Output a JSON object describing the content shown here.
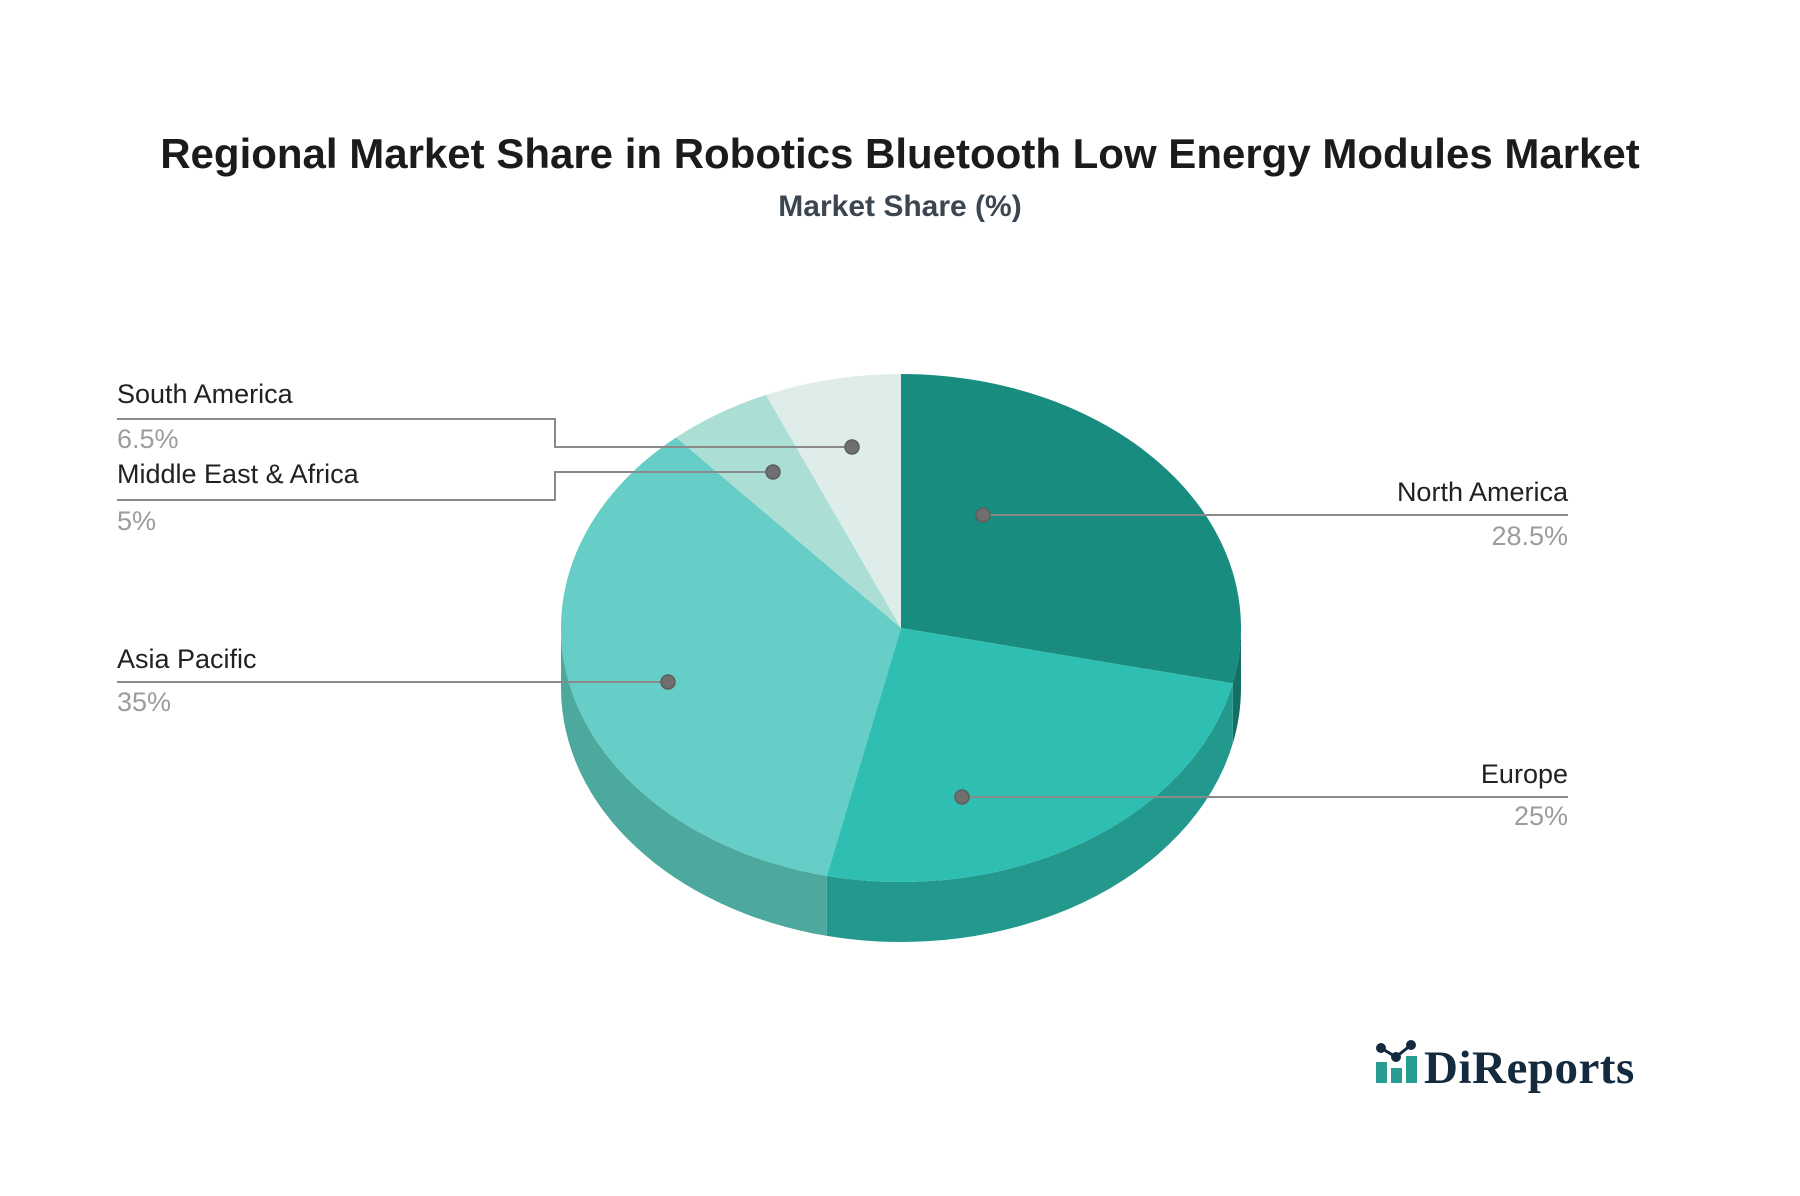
{
  "title": "Regional Market Share in Robotics Bluetooth Low Energy Modules Market",
  "subtitle": "Market Share (%)",
  "logo": {
    "text": "DiReports",
    "icon": "bar-chart-logo-icon"
  },
  "chart_data": {
    "type": "pie",
    "title": "Regional Market Share in Robotics Bluetooth Low Energy Modules Market",
    "subtitle": "Market Share (%)",
    "unit": "%",
    "effect": "3d",
    "direction": "clockwise",
    "start_angle_deg": 0,
    "legend": "none",
    "labels": [
      "North America",
      "Europe",
      "Asia Pacific",
      "Middle East & Africa",
      "South America"
    ],
    "values": [
      28.5,
      25,
      35,
      5,
      6.5
    ],
    "display_values": [
      "28.5%",
      "25%",
      "35%",
      "5%",
      "6.5%"
    ],
    "colors": [
      "#198C80",
      "#2EBFB2",
      "#66CEC6",
      "#ABDFD6",
      "#DEEDEA"
    ],
    "side_colors": [
      "#147066",
      "#23998E",
      "#4DA89D",
      "#86BEB5",
      "#B8CCC8"
    ],
    "leader_line_color": "#8A8A8A",
    "label_color": "#212121",
    "value_color": "#9C9C9C"
  }
}
